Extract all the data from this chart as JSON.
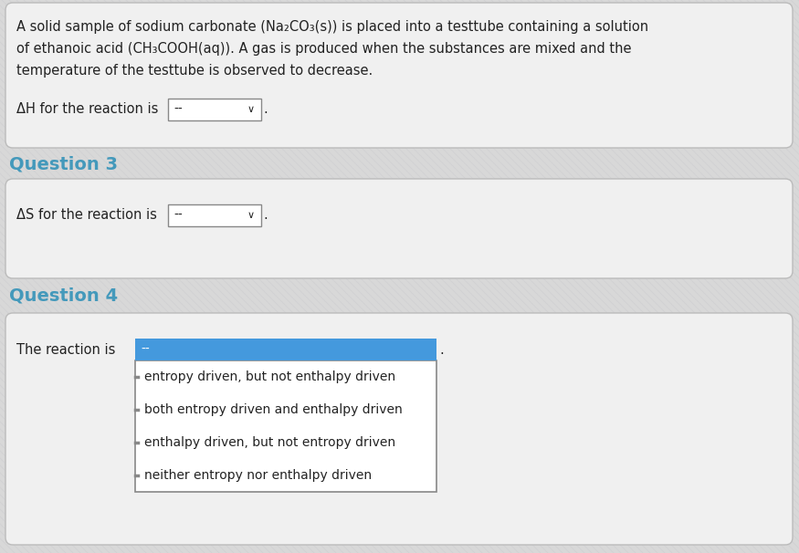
{
  "bg_color": "#d8d8d8",
  "bg_stripe_color1": "#d4d4d8",
  "bg_stripe_color2": "#dcdcdc",
  "card_color": "#f0f0f0",
  "card_border_color": "#bbbbbb",
  "paragraph_text_line1": "A solid sample of sodium carbonate (Na₂CO₃(s)) is placed into a testtube containing a solution",
  "paragraph_text_line2": "of ethanoic acid (CH₃COOH(aq)). A gas is produced when the substances are mixed and the",
  "paragraph_text_line3": "temperature of the testtube is observed to decrease.",
  "dh_label": "ΔH for the reaction is",
  "ds_label": "ΔS for the reaction is",
  "dropdown_text": "--",
  "question3_title": "Question 3",
  "question4_title": "Question 4",
  "reaction_label": "The reaction is",
  "dropdown_options": [
    "entropy driven, but not enthalpy driven",
    "both entropy driven and enthalpy driven",
    "enthalpy driven, but not entropy driven",
    "neither entropy nor enthalpy driven"
  ],
  "dropdown_selected_color": "#4499dd",
  "dropdown_bg_color": "#ffffff",
  "dropdown_border_color": "#888888",
  "question_color": "#4499bb",
  "text_color": "#222222",
  "font_size_body": 10.5,
  "font_size_question": 14,
  "font_size_dropdown": 10
}
